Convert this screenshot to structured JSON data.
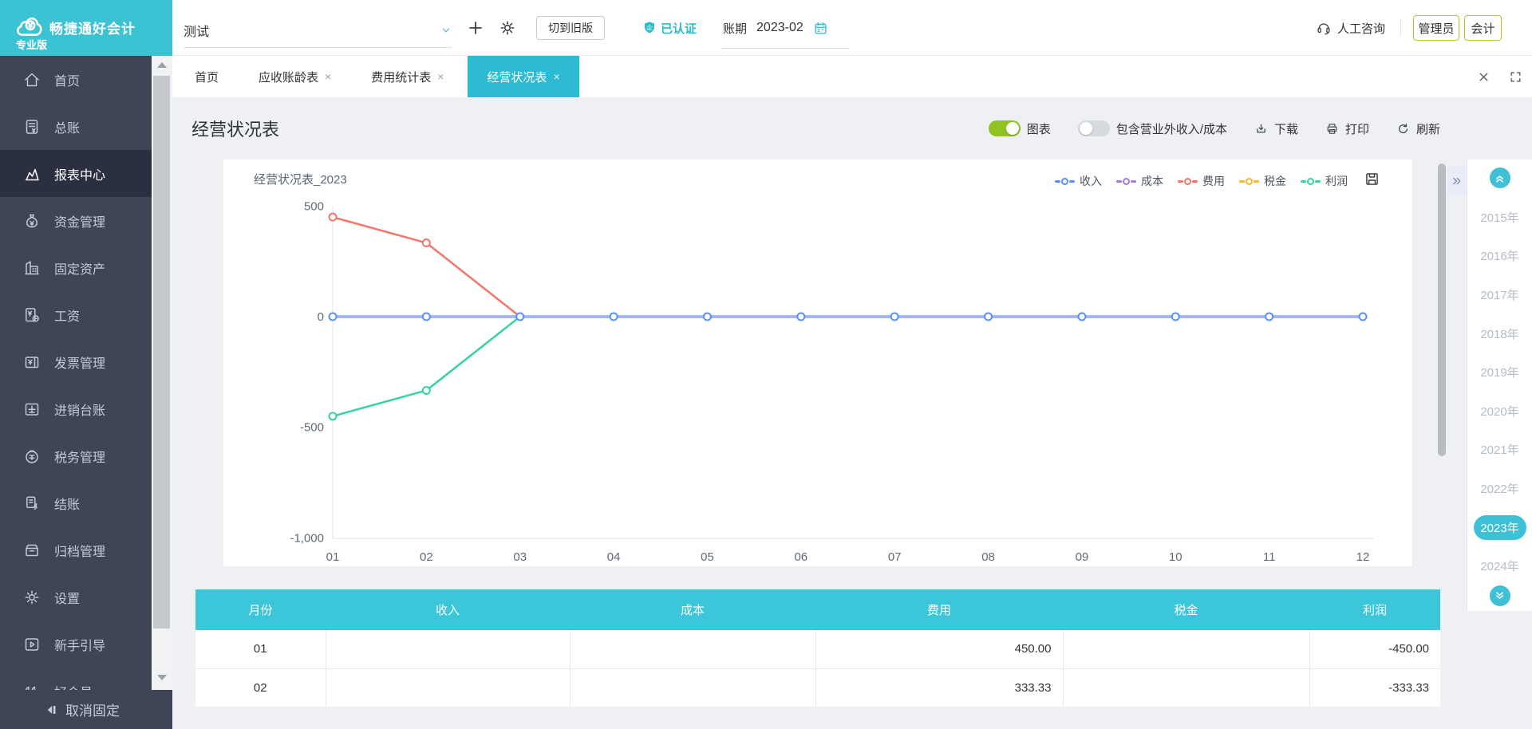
{
  "brand": {
    "app_name": "畅捷通好会计",
    "edition": "专业版",
    "logo_icon": "cloud-yuan-icon"
  },
  "topbar": {
    "account_name": "测试",
    "switch_old_button": "切到旧版",
    "certified_badge": "已认证",
    "period_label": "账期",
    "period_value": "2023-02",
    "support_label": "人工咨询",
    "role_buttons": [
      "管理员",
      "会计"
    ]
  },
  "sidebar": {
    "items": [
      {
        "label": "首页",
        "icon": "home-icon",
        "active": false
      },
      {
        "label": "总账",
        "icon": "ledger-icon",
        "active": false
      },
      {
        "label": "报表中心",
        "icon": "report-chart-icon",
        "active": true
      },
      {
        "label": "资金管理",
        "icon": "funds-icon",
        "active": false
      },
      {
        "label": "固定资产",
        "icon": "fixed-assets-icon",
        "active": false
      },
      {
        "label": "工资",
        "icon": "salary-icon",
        "active": false
      },
      {
        "label": "发票管理",
        "icon": "invoice-icon",
        "active": false
      },
      {
        "label": "进销台账",
        "icon": "trade-ledger-icon",
        "active": false
      },
      {
        "label": "税务管理",
        "icon": "tax-icon",
        "active": false
      },
      {
        "label": "结账",
        "icon": "closing-icon",
        "active": false
      },
      {
        "label": "归档管理",
        "icon": "archive-icon",
        "active": false
      },
      {
        "label": "设置",
        "icon": "gear-icon",
        "active": false
      },
      {
        "label": "新手引导",
        "icon": "guide-icon",
        "active": false
      },
      {
        "label": "好会员",
        "icon": "member-icon",
        "active": false
      }
    ],
    "unpin_label": "取消固定"
  },
  "tabs": {
    "items": [
      {
        "label": "首页",
        "closable": false,
        "active": false
      },
      {
        "label": "应收账龄表",
        "closable": true,
        "active": false
      },
      {
        "label": "费用统计表",
        "closable": true,
        "active": false
      },
      {
        "label": "经营状况表",
        "closable": true,
        "active": true
      }
    ]
  },
  "toolbar": {
    "page_title": "经营状况表",
    "chart_toggle_label": "图表",
    "chart_toggle_on": true,
    "include_toggle_label": "包含营业外收入/成本",
    "include_toggle_on": false,
    "download_label": "下载",
    "print_label": "打印",
    "refresh_label": "刷新"
  },
  "chart_data": {
    "type": "line",
    "title": "经营状况表_2023",
    "x": [
      "01",
      "02",
      "03",
      "04",
      "05",
      "06",
      "07",
      "08",
      "09",
      "10",
      "11",
      "12"
    ],
    "series": [
      {
        "name": "收入",
        "color": "#5b8ff9",
        "line_color": "#a5b7f3",
        "values": [
          0,
          0,
          0,
          0,
          0,
          0,
          0,
          0,
          0,
          0,
          0,
          0
        ]
      },
      {
        "name": "成本",
        "color": "#a07be0",
        "line_color": "#a07be0",
        "values": [
          0,
          0,
          0,
          0,
          0,
          0,
          0,
          0,
          0,
          0,
          0,
          0
        ]
      },
      {
        "name": "费用",
        "color": "#f4756c",
        "line_color": "#f4756c",
        "values": [
          450,
          333.33,
          0,
          0,
          0,
          0,
          0,
          0,
          0,
          0,
          0,
          0
        ]
      },
      {
        "name": "税金",
        "color": "#f7ba2a",
        "line_color": "#f7ba2a",
        "values": [
          0,
          0,
          0,
          0,
          0,
          0,
          0,
          0,
          0,
          0,
          0,
          0
        ]
      },
      {
        "name": "利润",
        "color": "#35d3a0",
        "line_color": "#35d3a0",
        "values": [
          -450,
          -333.33,
          0,
          0,
          0,
          0,
          0,
          0,
          0,
          0,
          0,
          0
        ]
      }
    ],
    "ylim": [
      -1000,
      500
    ],
    "yticks": [
      500,
      0,
      -500,
      -1000
    ],
    "ytick_labels": [
      "500",
      "0",
      "-500",
      "-1,000"
    ],
    "legend_position": "top-right",
    "grid": false
  },
  "table": {
    "columns": [
      "月份",
      "收入",
      "成本",
      "费用",
      "税金",
      "利润"
    ],
    "rows": [
      [
        "01",
        "",
        "",
        "450.00",
        "",
        "-450.00"
      ],
      [
        "02",
        "",
        "",
        "333.33",
        "",
        "-333.33"
      ]
    ]
  },
  "year_panel": {
    "years": [
      "2015年",
      "2016年",
      "2017年",
      "2018年",
      "2019年",
      "2020年",
      "2021年",
      "2022年",
      "2023年",
      "2024年"
    ],
    "selected": "2023年"
  },
  "colors": {
    "accent_teal": "#3cc3d3",
    "active_tab_teal": "#2ebbd1",
    "table_header_teal": "#3cc6da",
    "toggle_on_green": "#8ec320",
    "role_button_border": "#a6ce23",
    "sidebar_bg": "#3f4457",
    "sidebar_active_bg": "#2b3040",
    "page_bg": "#eef0f4"
  }
}
